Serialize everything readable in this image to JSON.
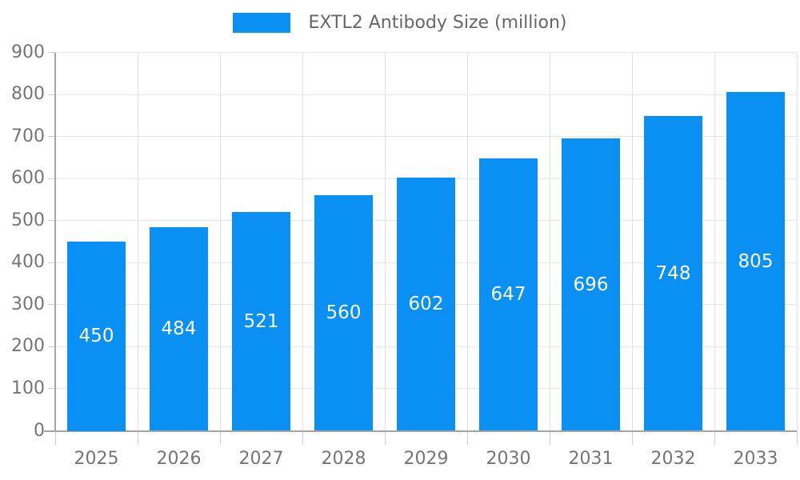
{
  "legend": {
    "label": "EXTL2 Antibody Size (million)"
  },
  "colors": {
    "bar": "#0a90f2",
    "grid_horizontal": "#e6e6e6",
    "grid_vertical": "#e0e0e0",
    "axis_line": "#a5a5a5",
    "tick": "#cfcfcf",
    "axis_text": "#757575",
    "legend_text": "#666666",
    "value_text": "#ffffff",
    "background": "#ffffff"
  },
  "chart_data": {
    "type": "bar",
    "title": "EXTL2 Antibody Size (million)",
    "categories": [
      "2025",
      "2026",
      "2027",
      "2028",
      "2029",
      "2030",
      "2031",
      "2032",
      "2033"
    ],
    "values": [
      450,
      484,
      521,
      560,
      602,
      647,
      696,
      748,
      805
    ],
    "series_name": "EXTL2 Antibody Size (million)",
    "xlabel": "",
    "ylabel": "",
    "ylim": [
      0,
      900
    ],
    "ytick_step": 100,
    "yticks": [
      0,
      100,
      200,
      300,
      400,
      500,
      600,
      700,
      800,
      900
    ],
    "grid": true,
    "legend_position": "top-center",
    "value_labels": "inside-center"
  }
}
